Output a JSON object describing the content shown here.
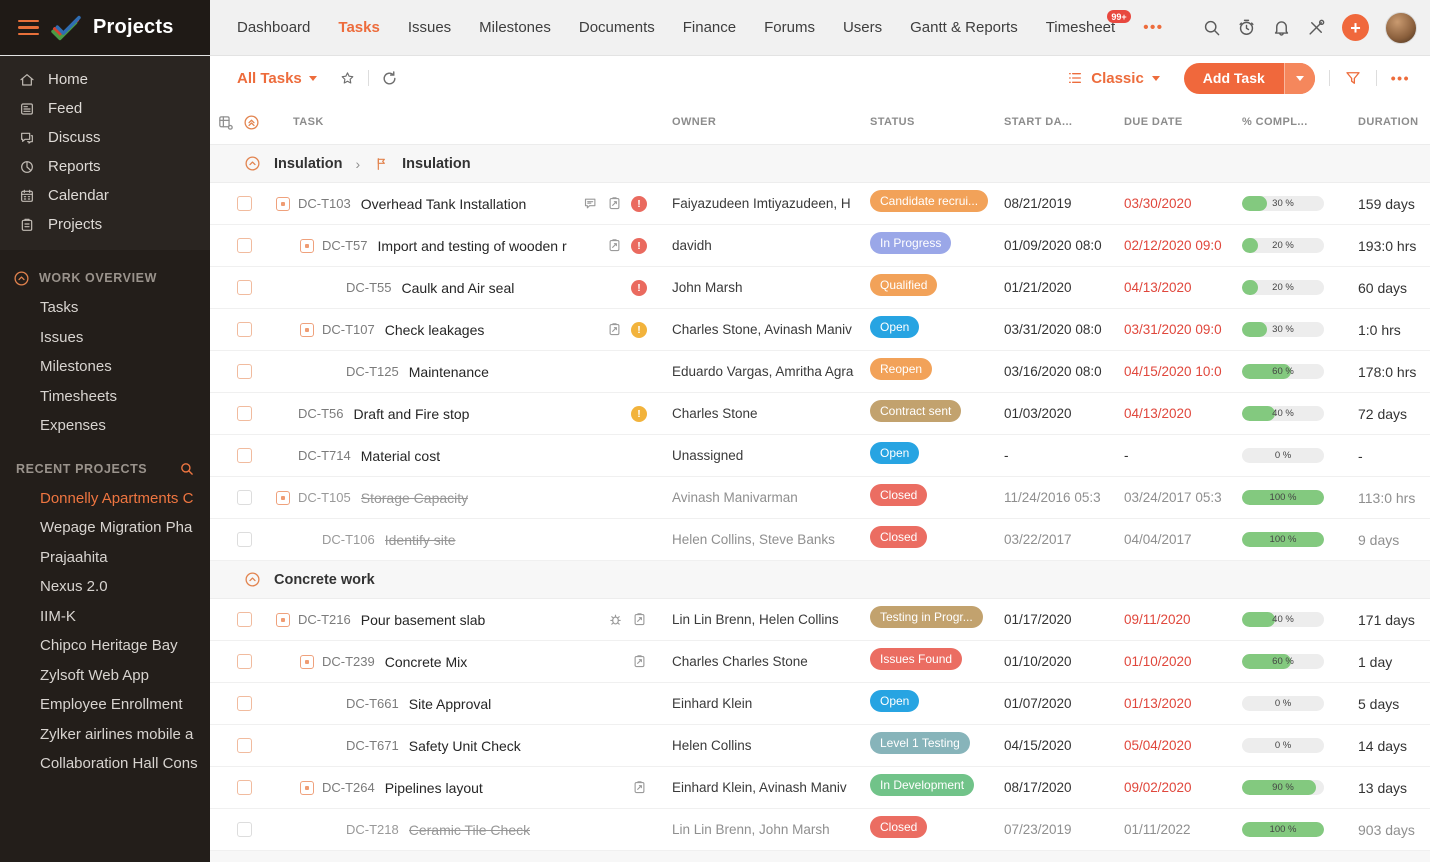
{
  "topnav": {
    "logo_text": "Projects",
    "items": [
      {
        "label": "Dashboard",
        "active": false
      },
      {
        "label": "Tasks",
        "active": true
      },
      {
        "label": "Issues",
        "active": false
      },
      {
        "label": "Milestones",
        "active": false
      },
      {
        "label": "Documents",
        "active": false
      },
      {
        "label": "Finance",
        "active": false
      },
      {
        "label": "Forums",
        "active": false
      },
      {
        "label": "Users",
        "active": false
      },
      {
        "label": "Gantt & Reports",
        "active": false
      },
      {
        "label": "Timesheet",
        "active": false,
        "badge": "99+"
      }
    ],
    "more_label": "•••",
    "right_icons": [
      "search-icon",
      "timer-icon",
      "bell-icon",
      "tools-icon",
      "add-icon",
      "avatar"
    ]
  },
  "sidebar": {
    "main_items": [
      {
        "icon": "home-icon",
        "label": "Home"
      },
      {
        "icon": "feed-icon",
        "label": "Feed"
      },
      {
        "icon": "discuss-icon",
        "label": "Discuss"
      },
      {
        "icon": "reports-icon",
        "label": "Reports"
      },
      {
        "icon": "calendar-icon",
        "label": "Calendar"
      },
      {
        "icon": "projects-icon",
        "label": "Projects"
      }
    ],
    "work_overview": {
      "label": "WORK OVERVIEW",
      "items": [
        "Tasks",
        "Issues",
        "Milestones",
        "Timesheets",
        "Expenses"
      ]
    },
    "recent_projects": {
      "label": "RECENT PROJECTS",
      "items": [
        {
          "label": "Donnelly Apartments C",
          "active": true
        },
        {
          "label": "Wepage Migration Pha",
          "active": false
        },
        {
          "label": "Prajaahita",
          "active": false
        },
        {
          "label": "Nexus 2.0",
          "active": false
        },
        {
          "label": "IIM-K",
          "active": false
        },
        {
          "label": "Chipco Heritage Bay",
          "active": false
        },
        {
          "label": "Zylsoft Web App",
          "active": false
        },
        {
          "label": "Employee Enrollment",
          "active": false
        },
        {
          "label": "Zylker airlines mobile a",
          "active": false
        },
        {
          "label": "Collaboration Hall Cons",
          "active": false
        }
      ]
    }
  },
  "toolbar": {
    "filter_label": "All Tasks",
    "view_label": "Classic",
    "add_task_label": "Add Task",
    "more_label": "•••"
  },
  "table": {
    "columns": [
      "TASK",
      "OWNER",
      "STATUS",
      "START DA...",
      "DUE DATE",
      "% COMPL...",
      "DURATION"
    ],
    "groups": [
      {
        "title": "Insulation",
        "milestone": "Insulation",
        "rows": [
          {
            "indent": 0,
            "toggle": true,
            "id": "DC-T103",
            "title": "Overhead Tank Installation",
            "icons": [
              "comment-icon",
              "log-icon"
            ],
            "flag": "red",
            "completed": false,
            "owner": "Faiyazudeen Imtiyazudeen, H",
            "status": "Candidate recrui...",
            "status_color": "#f2a259",
            "start": "08/21/2019",
            "due": "03/30/2020",
            "due_overdue": true,
            "pct": 30,
            "duration": "159 days"
          },
          {
            "indent": 1,
            "toggle": true,
            "id": "DC-T57",
            "title": "Import and testing of wooden r",
            "icons": [
              "log-icon"
            ],
            "flag": "red",
            "completed": false,
            "owner": "davidh",
            "status": "In Progress",
            "status_color": "#9aa7e8",
            "start": "01/09/2020 08:0",
            "due": "02/12/2020 09:0",
            "due_overdue": true,
            "pct": 20,
            "duration": "193:0 hrs"
          },
          {
            "indent": 2,
            "toggle": false,
            "id": "DC-T55",
            "title": "Caulk and Air seal",
            "icons": [],
            "flag": "red",
            "completed": false,
            "owner": "John Marsh",
            "status": "Qualified",
            "status_color": "#f2a259",
            "start": "01/21/2020",
            "due": "04/13/2020",
            "due_overdue": true,
            "pct": 20,
            "duration": "60 days"
          },
          {
            "indent": 1,
            "toggle": true,
            "id": "DC-T107",
            "title": "Check leakages",
            "icons": [
              "log-icon"
            ],
            "flag": "yellow",
            "completed": false,
            "owner": "Charles Stone, Avinash Maniv",
            "status": "Open",
            "status_color": "#27a4e2",
            "start": "03/31/2020 08:0",
            "due": "03/31/2020 09:0",
            "due_overdue": true,
            "pct": 30,
            "duration": "1:0 hrs"
          },
          {
            "indent": 2,
            "toggle": false,
            "id": "DC-T125",
            "title": "Maintenance",
            "icons": [],
            "flag": null,
            "completed": false,
            "owner": "Eduardo Vargas, Amritha Agra",
            "status": "Reopen",
            "status_color": "#f2a259",
            "start": "03/16/2020 08:0",
            "due": "04/15/2020 10:0",
            "due_overdue": true,
            "pct": 60,
            "duration": "178:0 hrs"
          },
          {
            "indent": 0,
            "toggle": false,
            "id": "DC-T56",
            "title": "Draft and Fire stop",
            "icons": [],
            "flag": "yellow",
            "completed": false,
            "owner": "Charles Stone",
            "status": "Contract sent",
            "status_color": "#c2a26e",
            "start": "01/03/2020",
            "due": "04/13/2020",
            "due_overdue": true,
            "pct": 40,
            "duration": "72 days"
          },
          {
            "indent": 0,
            "toggle": false,
            "id": "DC-T714",
            "title": "Material cost",
            "icons": [],
            "flag": null,
            "completed": false,
            "owner": "Unassigned",
            "status": "Open",
            "status_color": "#27a4e2",
            "start": "-",
            "due": "-",
            "due_overdue": false,
            "pct": 0,
            "duration": "-"
          },
          {
            "indent": 0,
            "toggle": true,
            "id": "DC-T105",
            "title": "Storage Capacity",
            "icons": [],
            "flag": null,
            "completed": true,
            "owner": "Avinash Manivarman",
            "status": "Closed",
            "status_color": "#eb6d62",
            "start": "11/24/2016 05:3",
            "due": "03/24/2017 05:3",
            "due_overdue": false,
            "pct": 100,
            "duration": "113:0 hrs"
          },
          {
            "indent": 1,
            "toggle": false,
            "id": "DC-T106",
            "title": "Identify site",
            "icons": [],
            "flag": null,
            "completed": true,
            "owner": "Helen Collins, Steve Banks",
            "status": "Closed",
            "status_color": "#eb6d62",
            "start": "03/22/2017",
            "due": "04/04/2017",
            "due_overdue": false,
            "pct": 100,
            "duration": "9 days"
          }
        ]
      },
      {
        "title": "Concrete work",
        "milestone": null,
        "rows": [
          {
            "indent": 0,
            "toggle": true,
            "id": "DC-T216",
            "title": "Pour basement slab",
            "icons": [
              "bug-icon",
              "log-icon"
            ],
            "flag": null,
            "completed": false,
            "owner": "Lin Lin Brenn, Helen Collins",
            "status": "Testing in Progr...",
            "status_color": "#c2a26e",
            "start": "01/17/2020",
            "due": "09/11/2020",
            "due_overdue": true,
            "pct": 40,
            "duration": "171 days"
          },
          {
            "indent": 1,
            "toggle": true,
            "id": "DC-T239",
            "title": "Concrete Mix",
            "icons": [
              "log-icon"
            ],
            "flag": null,
            "completed": false,
            "owner": "Charles Charles Stone",
            "status": "Issues Found",
            "status_color": "#eb6d62",
            "start": "01/10/2020",
            "due": "01/10/2020",
            "due_overdue": true,
            "pct": 60,
            "duration": "1 day"
          },
          {
            "indent": 2,
            "toggle": false,
            "id": "DC-T661",
            "title": "Site Approval",
            "icons": [],
            "flag": null,
            "completed": false,
            "owner": "Einhard Klein",
            "status": "Open",
            "status_color": "#27a4e2",
            "start": "01/07/2020",
            "due": "01/13/2020",
            "due_overdue": true,
            "pct": 0,
            "duration": "5 days"
          },
          {
            "indent": 2,
            "toggle": false,
            "id": "DC-T671",
            "title": "Safety Unit Check",
            "icons": [],
            "flag": null,
            "completed": false,
            "owner": "Helen Collins",
            "status": "Level 1 Testing",
            "status_color": "#87b4ba",
            "start": "04/15/2020",
            "due": "05/04/2020",
            "due_overdue": true,
            "pct": 0,
            "duration": "14 days"
          },
          {
            "indent": 1,
            "toggle": true,
            "id": "DC-T264",
            "title": "Pipelines layout",
            "icons": [
              "log-icon"
            ],
            "flag": null,
            "completed": false,
            "owner": "Einhard Klein, Avinash Maniv",
            "status": "In Development",
            "status_color": "#71c389",
            "start": "08/17/2020",
            "due": "09/02/2020",
            "due_overdue": true,
            "pct": 90,
            "duration": "13 days"
          },
          {
            "indent": 2,
            "toggle": false,
            "id": "DC-T218",
            "title": "Ceramic Tile Check",
            "icons": [],
            "flag": null,
            "completed": true,
            "owner": "Lin Lin Brenn, John Marsh",
            "status": "Closed",
            "status_color": "#eb6d62",
            "start": "07/23/2019",
            "due": "01/11/2022",
            "due_overdue": false,
            "pct": 100,
            "duration": "903 days"
          }
        ]
      }
    ]
  },
  "colors": {
    "accent": "#ed6c3c",
    "overdue": "#e0473c",
    "progress_fill": "#83c97f",
    "flag_red": "#ea6a5f",
    "flag_yellow": "#f2b33c"
  }
}
